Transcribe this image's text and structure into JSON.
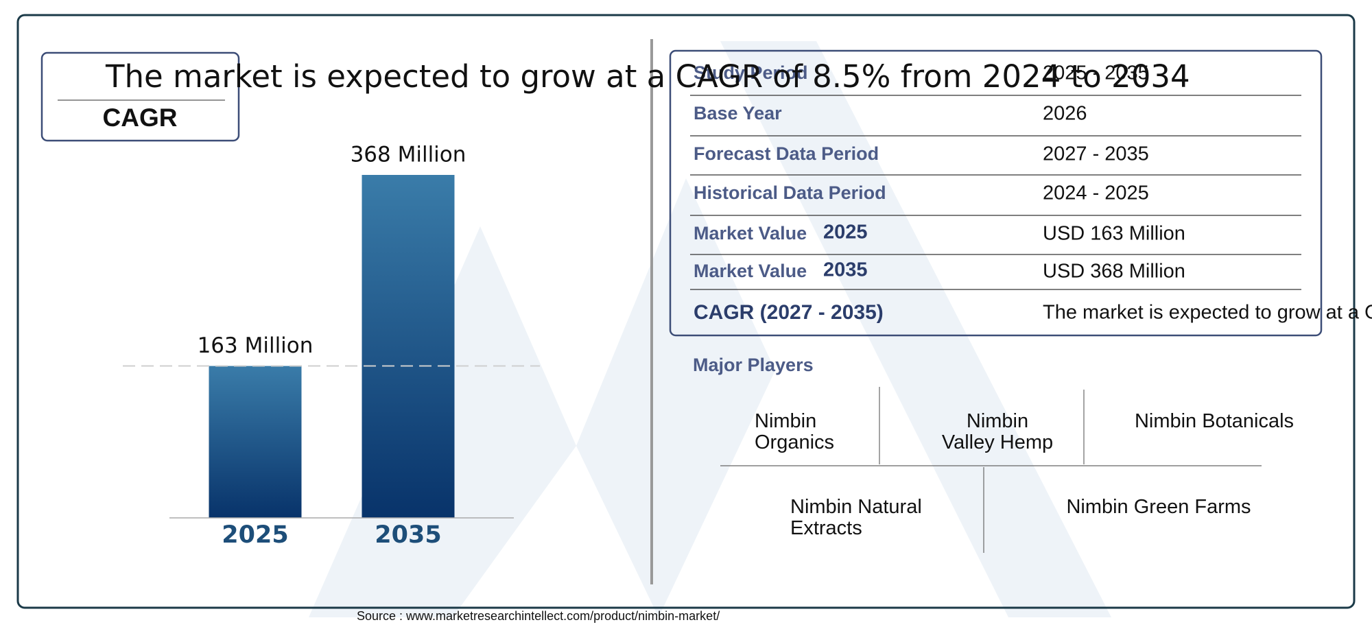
{
  "chart_data": {
    "type": "bar",
    "categories": [
      "2025",
      "2035"
    ],
    "values": [
      163,
      368
    ],
    "value_labels": [
      "163 Million",
      "368 Million"
    ]
  },
  "headline": "The market is expected to grow at a CAGR of 8.5% from 2024 to 2034",
  "cagr_box": {
    "title": "CAGR"
  },
  "table": {
    "rows": [
      {
        "label": "Study Period",
        "value": "2025 - 2035"
      },
      {
        "label": "Base Year",
        "value": "2026"
      },
      {
        "label": "Forecast Data Period",
        "value": "2027 - 2035"
      },
      {
        "label": "Historical Data Period",
        "value": "2024 - 2025"
      },
      {
        "label": "Market Value",
        "year": "2025",
        "value": "USD 163 Million"
      },
      {
        "label": "Market Value",
        "year": "2035",
        "value": "USD 368 Million"
      },
      {
        "label": "CAGR (2027 - 2035)",
        "value": "The market is expected to grow at a CA"
      }
    ]
  },
  "major_players": {
    "title": "Major Players",
    "players": [
      [
        "Nimbin",
        "Organics"
      ],
      [
        "Nimbin",
        "Valley Hemp"
      ],
      [
        "Nimbin Botanicals"
      ],
      [
        "Nimbin Natural",
        "Extracts"
      ],
      [
        "Nimbin Green Farms"
      ]
    ]
  },
  "source": "Source : www.marketresearchintellect.com/product/nimbin-market/"
}
